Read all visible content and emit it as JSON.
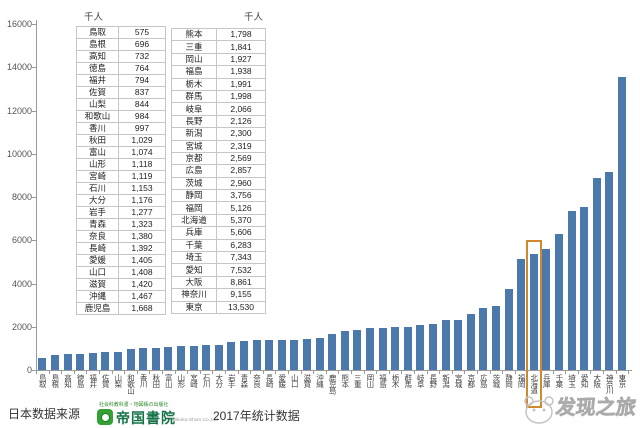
{
  "chart_data": {
    "type": "bar",
    "title": "",
    "axis_unit_label": "千人",
    "categories": [
      "鳥取",
      "島根",
      "高知",
      "徳島",
      "福井",
      "佐賀",
      "山梨",
      "和歌山",
      "香川",
      "秋田",
      "富山",
      "山形",
      "宮崎",
      "石川",
      "大分",
      "岩手",
      "青森",
      "奈良",
      "長崎",
      "愛媛",
      "山口",
      "滋賀",
      "沖縄",
      "鹿児島",
      "熊本",
      "三重",
      "岡山",
      "福島",
      "栃木",
      "群馬",
      "岐阜",
      "長野",
      "新潟",
      "宮城",
      "京都",
      "広島",
      "茨城",
      "静岡",
      "福岡",
      "北海道",
      "兵庫",
      "千葉",
      "埼玉",
      "愛知",
      "大阪",
      "神奈川",
      "東京"
    ],
    "values": [
      575,
      696,
      732,
      764,
      794,
      837,
      844,
      984,
      997,
      1029,
      1074,
      1118,
      1119,
      1153,
      1176,
      1277,
      1323,
      1380,
      1392,
      1405,
      1408,
      1420,
      1467,
      1668,
      1798,
      1841,
      1927,
      1938,
      1991,
      1998,
      2066,
      2126,
      2300,
      2319,
      2569,
      2857,
      2960,
      3756,
      5126,
      5370,
      5606,
      6283,
      7343,
      7532,
      8861,
      9155,
      13530
    ],
    "xlabel": "",
    "ylabel": "千人",
    "ylim": [
      0,
      16000
    ],
    "yticks": [
      0,
      2000,
      4000,
      6000,
      8000,
      10000,
      12000,
      14000,
      16000
    ],
    "grid": false,
    "legend_position": "none",
    "bar_color": "#4b79ab",
    "highlight": {
      "category": "北海道",
      "value": 5370,
      "index": 39,
      "box_color": "#d0892f"
    }
  },
  "legend_tables": {
    "unit_label": "千人",
    "split_index": 24
  },
  "footer": {
    "source_text": "日本数据来源",
    "publisher_tagline": "社会科教科書・地図帳の出版社",
    "publisher_name": "帝国書院",
    "publisher_en": "Teikoku-Shoin Co.,Ltd",
    "stats_text": "2017年统计数据",
    "watermark": "发现之旅"
  }
}
